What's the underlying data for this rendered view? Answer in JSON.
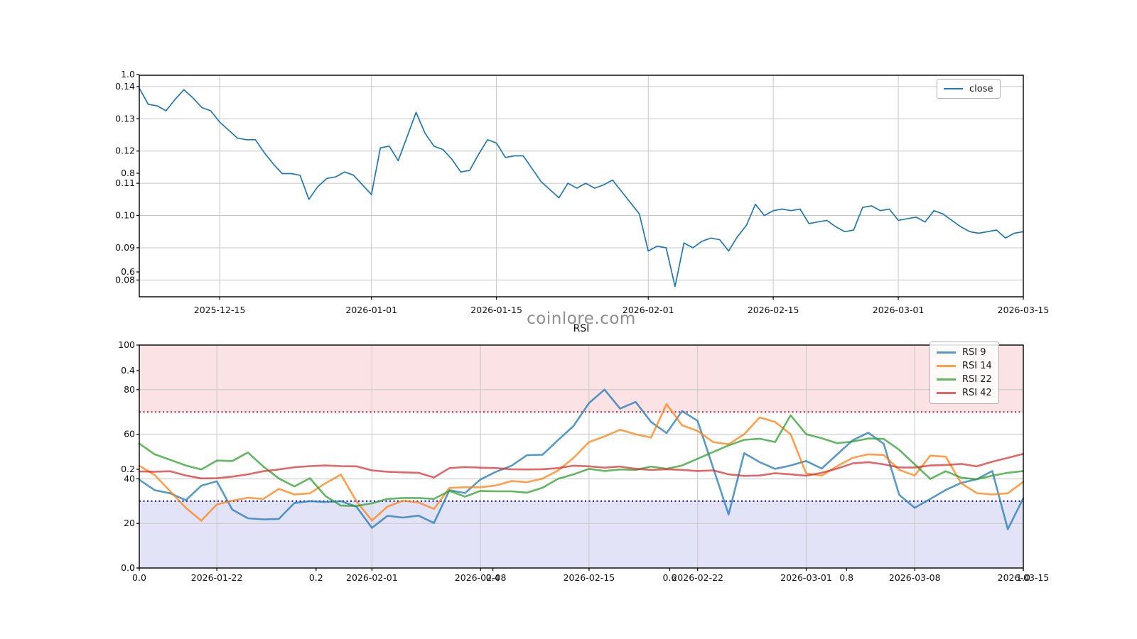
{
  "watermark": "coinlore.com",
  "chart_data": [
    {
      "type": "line",
      "title": "",
      "legend_position": "upper right",
      "legend": [
        "close"
      ],
      "grid": true,
      "x_start": "2025-12-06",
      "x_end": "2026-03-15",
      "freq": "daily",
      "ylim": [
        0.0748,
        0.1435
      ],
      "x_ticks": [
        {
          "label": "2025-12-15",
          "day": 9
        },
        {
          "label": "2026-01-01",
          "day": 26
        },
        {
          "label": "2026-01-15",
          "day": 40
        },
        {
          "label": "2026-02-01",
          "day": 57
        },
        {
          "label": "2026-02-15",
          "day": 71
        },
        {
          "label": "2026-03-01",
          "day": 85
        },
        {
          "label": "2026-03-15",
          "day": 99
        }
      ],
      "y_ticks": [
        {
          "label": "0.14",
          "value": 0.14
        },
        {
          "label": "0.13",
          "value": 0.13
        },
        {
          "label": "0.12",
          "value": 0.12
        },
        {
          "label": "0.11",
          "value": 0.11
        },
        {
          "label": "0.10",
          "value": 0.1
        },
        {
          "label": "0.09",
          "value": 0.09
        },
        {
          "label": "0.08",
          "value": 0.08
        }
      ],
      "stray_overlay_y_tick_labels": [
        "1.0",
        "0.8",
        "0.6"
      ],
      "series": [
        {
          "name": "close",
          "color": "#1f77b4",
          "width": 1.7,
          "opacity": 1,
          "values": [
            0.1395,
            0.1345,
            0.134,
            0.1325,
            0.136,
            0.139,
            0.1365,
            0.1335,
            0.1325,
            0.129,
            0.1265,
            0.124,
            0.1235,
            0.1235,
            0.1195,
            0.116,
            0.113,
            0.113,
            0.1125,
            0.105,
            0.109,
            0.1115,
            0.112,
            0.1135,
            0.1125,
            0.1095,
            0.1065,
            0.121,
            0.1215,
            0.117,
            0.1245,
            0.132,
            0.1255,
            0.1215,
            0.1205,
            0.1175,
            0.1135,
            0.114,
            0.119,
            0.1235,
            0.1225,
            0.118,
            0.1185,
            0.1185,
            0.1145,
            0.1105,
            0.108,
            0.1055,
            0.11,
            0.1085,
            0.11,
            0.1085,
            0.1095,
            0.111,
            0.1075,
            0.104,
            0.1005,
            0.089,
            0.0905,
            0.09,
            0.078,
            0.0915,
            0.09,
            0.092,
            0.093,
            0.0925,
            0.089,
            0.0935,
            0.097,
            0.1035,
            0.1,
            0.1015,
            0.102,
            0.1015,
            0.102,
            0.0975,
            0.098,
            0.0985,
            0.0965,
            0.095,
            0.0955,
            0.1025,
            0.103,
            0.1015,
            0.102,
            0.0985,
            0.099,
            0.0995,
            0.098,
            0.1015,
            0.1005,
            0.0985,
            0.0965,
            0.095,
            0.0945,
            0.095,
            0.0955,
            0.093,
            0.0945,
            0.095
          ]
        }
      ]
    },
    {
      "type": "line",
      "title": "RSI",
      "legend_position": "upper right",
      "legend": [
        "RSI 9",
        "RSI 14",
        "RSI 22",
        "RSI 42"
      ],
      "grid": true,
      "x_start": "2026-01-17",
      "x_end": "2026-03-15",
      "freq": "daily",
      "ylim": [
        0,
        100
      ],
      "overbought_line": 70,
      "oversold_line": 30,
      "overbought_line_color": "#d4132f",
      "oversold_line_color": "#0000cd",
      "bands": [
        {
          "range": [
            70,
            100
          ],
          "color": "#fbe3e5"
        },
        {
          "range": [
            0,
            30
          ],
          "color": "#e3e3f8"
        }
      ],
      "x_ticks": [
        {
          "label": "2026-01-22",
          "day": 5
        },
        {
          "label": "2026-02-01",
          "day": 15
        },
        {
          "label": "2026-02-08",
          "day": 22
        },
        {
          "label": "2026-02-15",
          "day": 29
        },
        {
          "label": "2026-02-22",
          "day": 36
        },
        {
          "label": "2026-03-01",
          "day": 43
        },
        {
          "label": "2026-03-08",
          "day": 50
        },
        {
          "label": "2026-03-15",
          "day": 57
        }
      ],
      "y_ticks": [
        {
          "label": "100",
          "value": 100
        },
        {
          "label": "80",
          "value": 80
        },
        {
          "label": "60",
          "value": 60
        },
        {
          "label": "40",
          "value": 40
        },
        {
          "label": "20",
          "value": 20
        },
        {
          "label": "0",
          "value": 0
        }
      ],
      "stray_overlay_y_tick_labels": [
        "0.4",
        "0.2",
        "0.0"
      ],
      "stray_overlay_x_tick_labels": [
        "0.0",
        "0.2",
        "0.4",
        "0.6",
        "0.8",
        "1.0"
      ],
      "series": [
        {
          "name": "RSI 9",
          "color": "#1f77b4",
          "width": 2.6,
          "opacity": 0.75,
          "values": [
            39.6,
            34.9,
            33.5,
            30.4,
            36.9,
            38.9,
            26.2,
            22.3,
            21.8,
            22,
            29.1,
            30,
            29.6,
            30,
            27.5,
            18,
            23.4,
            22.6,
            23.5,
            20.2,
            34.9,
            33.6,
            39.7,
            43.2,
            45.9,
            50.6,
            50.8,
            57.4,
            63.7,
            74,
            80,
            71.5,
            74.5,
            65.5,
            60.5,
            70.4,
            66,
            45,
            24,
            51.5,
            47.5,
            44.5,
            46,
            48,
            44.6,
            51,
            57.3,
            60.7,
            55.7,
            32.8,
            27,
            31,
            35,
            38.2,
            39.8,
            43.5,
            17.4,
            31.3
          ]
        },
        {
          "name": "RSI 14",
          "color": "#ff7f0e",
          "width": 2.6,
          "opacity": 0.75,
          "values": [
            45.9,
            41.7,
            34.4,
            27,
            21.2,
            28.5,
            30.2,
            31.5,
            31,
            35.5,
            33,
            33.5,
            38,
            41.9,
            30,
            21.3,
            27.5,
            30.2,
            29.4,
            26.5,
            35.9,
            36.2,
            36.2,
            37,
            39,
            38.5,
            40.1,
            43.7,
            49.4,
            56.5,
            59,
            62,
            60,
            58.5,
            73.5,
            64,
            61.5,
            56.5,
            55.5,
            60,
            67.5,
            65.5,
            60,
            42.4,
            41.4,
            45.7,
            49.4,
            51,
            50.7,
            44,
            41.5,
            50.4,
            49.9,
            38,
            33.6,
            33,
            33.5,
            38.7
          ]
        },
        {
          "name": "RSI 22",
          "color": "#2ca02c",
          "width": 2.6,
          "opacity": 0.75,
          "values": [
            55.8,
            51,
            48.5,
            46,
            44.2,
            48.2,
            48,
            51.8,
            45.5,
            40.2,
            36.6,
            40.3,
            32.3,
            28,
            27.8,
            29,
            31,
            31.4,
            31.4,
            31,
            34.6,
            32,
            34.6,
            34.4,
            34.4,
            33.8,
            36,
            40,
            42,
            44.5,
            43.5,
            44.2,
            44,
            45.5,
            44.5,
            46,
            49,
            52,
            55,
            57.5,
            58,
            56.5,
            68.5,
            60,
            58.2,
            56,
            56.7,
            58.1,
            57.9,
            53,
            46.5,
            40,
            43.4,
            40.5,
            39.8,
            41.4,
            42.7,
            43.5
          ]
        },
        {
          "name": "RSI 42",
          "color": "#d62728",
          "width": 2.6,
          "opacity": 0.7,
          "values": [
            43.3,
            43.2,
            43.4,
            41.5,
            40.2,
            40.3,
            41,
            42,
            43.4,
            44.2,
            45.2,
            45.7,
            46,
            45.7,
            45.6,
            43.8,
            43.2,
            42.9,
            42.7,
            40.6,
            44.8,
            45.3,
            45,
            44.8,
            44.3,
            44.2,
            44.3,
            44.8,
            45.9,
            45.6,
            45,
            45.5,
            44.5,
            44,
            44.3,
            44,
            43.5,
            43.8,
            42,
            41.3,
            41.5,
            42.5,
            42,
            41.4,
            42.7,
            44.6,
            46.9,
            47.5,
            46.5,
            45.1,
            45.1,
            46,
            46.2,
            46.7,
            45.6,
            47.7,
            49.4,
            51.2
          ]
        }
      ]
    }
  ]
}
